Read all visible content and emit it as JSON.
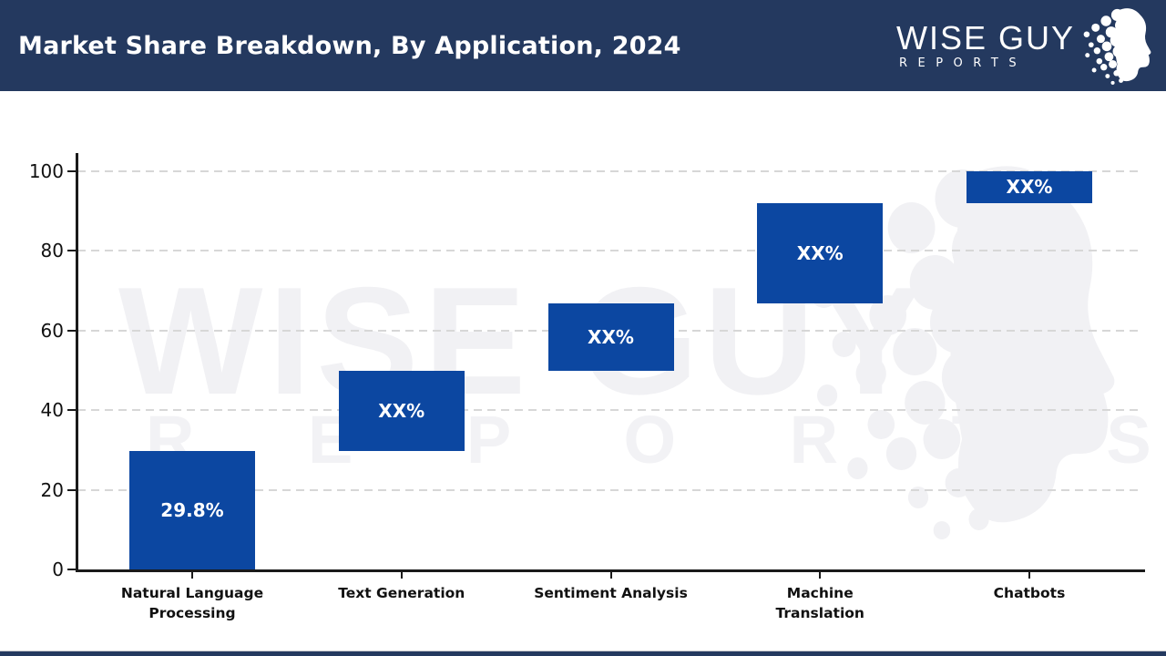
{
  "header": {
    "title": "Market Share Breakdown, By Application, 2024",
    "brand": {
      "wordmark_line1": "WISE GUY",
      "wordmark_line2": "REPORTS",
      "head_icon": "dotted-face-profile",
      "bg_color": "#24395f",
      "text_color": "#ffffff"
    }
  },
  "watermark": {
    "line1": "WISE GUY",
    "line2": "R E P O R T S",
    "head_icon": "dotted-face-profile",
    "color": "#f1f1f4"
  },
  "chart_data": {
    "type": "bar",
    "subtype": "floating-waterfall",
    "title": "Market Share Breakdown, By Application, 2024",
    "xlabel": "",
    "ylabel": "",
    "ylim": [
      0,
      100
    ],
    "yticks": [
      0,
      20,
      40,
      60,
      80,
      100
    ],
    "grid": "horizontal-dashed",
    "grid_color": "#d7d7d7",
    "bar_color": "#0c47a1",
    "value_label_color": "#ffffff",
    "categories": [
      "Natural Language Processing",
      "Text Generation",
      "Sentiment Analysis",
      "Machine Translation",
      "Chatbots"
    ],
    "tick_labels": [
      "Natural Language\nProcessing",
      "Text Generation",
      "Sentiment Analysis",
      "Machine\nTranslation",
      "Chatbots"
    ],
    "segments": [
      {
        "category": "Natural Language Processing",
        "start": 0,
        "end": 29.8,
        "label": "29.8%"
      },
      {
        "category": "Text Generation",
        "start": 29.8,
        "end": 49.8,
        "label": "XX%"
      },
      {
        "category": "Sentiment Analysis",
        "start": 49.8,
        "end": 66.8,
        "label": "XX%"
      },
      {
        "category": "Machine Translation",
        "start": 66.8,
        "end": 91.9,
        "label": "XX%"
      },
      {
        "category": "Chatbots",
        "start": 91.9,
        "end": 100,
        "label": "XX%"
      }
    ]
  }
}
